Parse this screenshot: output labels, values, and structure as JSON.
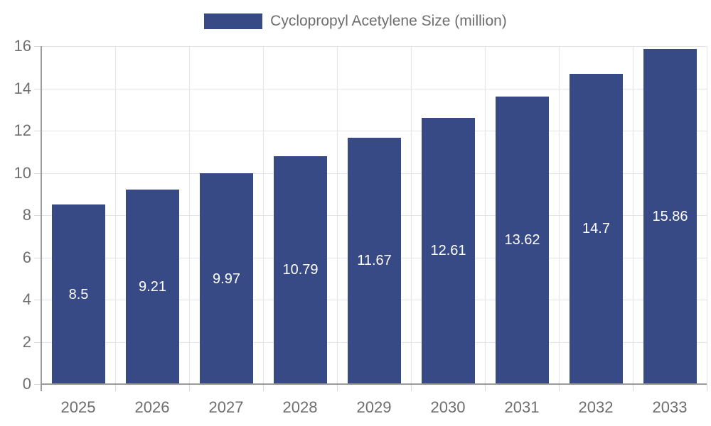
{
  "chart_data": {
    "type": "bar",
    "title": "",
    "legend": "Cyclopropyl Acetylene Size (million)",
    "categories": [
      "2025",
      "2026",
      "2027",
      "2028",
      "2029",
      "2030",
      "2031",
      "2032",
      "2033"
    ],
    "series": [
      {
        "name": "Cyclopropyl Acetylene Size (million)",
        "values": [
          8.5,
          9.21,
          9.97,
          10.79,
          11.67,
          12.61,
          13.62,
          14.7,
          15.86
        ],
        "value_labels": [
          "8.5",
          "9.21",
          "9.97",
          "10.79",
          "11.67",
          "12.61",
          "13.62",
          "14.7",
          "15.86"
        ]
      }
    ],
    "xlabel": "",
    "ylabel": "",
    "ylim": [
      0,
      16
    ],
    "yticks": [
      0,
      2,
      4,
      6,
      8,
      10,
      12,
      14,
      16
    ],
    "grid": true,
    "grid_vertical": true,
    "legend_position": "top-center",
    "bar_label_position": "inside-center",
    "colors": {
      "bar": "#374A85",
      "grid": "#E3E3E8",
      "axis_border": "#9B9B9B",
      "tick_mark": "#D9D9D9",
      "tick_label": "#6E6E6E",
      "legend_text": "#6E6E6E",
      "bar_label": "#FFFFFF",
      "background": "#FFFFFF"
    }
  }
}
